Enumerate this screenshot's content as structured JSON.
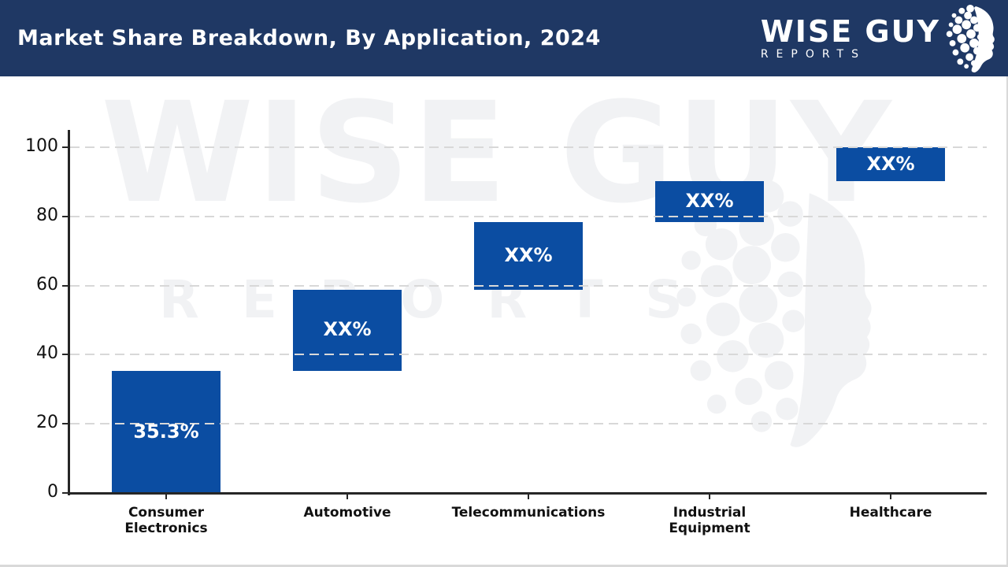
{
  "header": {
    "title": "Market Share Breakdown, By Application, 2024",
    "logo": {
      "line1": "WISE GUY",
      "line2": "REPORTS"
    }
  },
  "watermark": {
    "line1": "WISE GUY",
    "line2": "REPORTS"
  },
  "chart_data": {
    "type": "bar",
    "subtype": "waterfall",
    "title": "Market Share Breakdown, By Application, 2024",
    "categories": [
      "Consumer\nElectronics",
      "Automotive",
      "Telecommunications",
      "Industrial\nEquipment",
      "Healthcare"
    ],
    "bars": [
      {
        "category": "Consumer Electronics",
        "start": 0,
        "end": 35.3,
        "label": "35.3%"
      },
      {
        "category": "Automotive",
        "start": 35.3,
        "end": 58.8,
        "label": "XX%"
      },
      {
        "category": "Telecommunications",
        "start": 58.8,
        "end": 78.3,
        "label": "XX%"
      },
      {
        "category": "Industrial Equipment",
        "start": 78.3,
        "end": 90.1,
        "label": "XX%"
      },
      {
        "category": "Healthcare",
        "start": 90.1,
        "end": 100,
        "label": "XX%"
      }
    ],
    "yticks": [
      0,
      20,
      40,
      60,
      80,
      100
    ],
    "ylim": [
      0,
      105
    ],
    "xlabel": "",
    "ylabel": "",
    "legend": "none",
    "grid": "horizontal-dashed",
    "grid_color": "#d8d8d8",
    "bar_color": "#0b4da2",
    "bar_label_color": "#ffffff",
    "axis_color": "#262626"
  },
  "colors": {
    "header_bg": "#1f3864",
    "header_text": "#ffffff",
    "watermark": "#f1f2f4",
    "background": "#ffffff"
  }
}
